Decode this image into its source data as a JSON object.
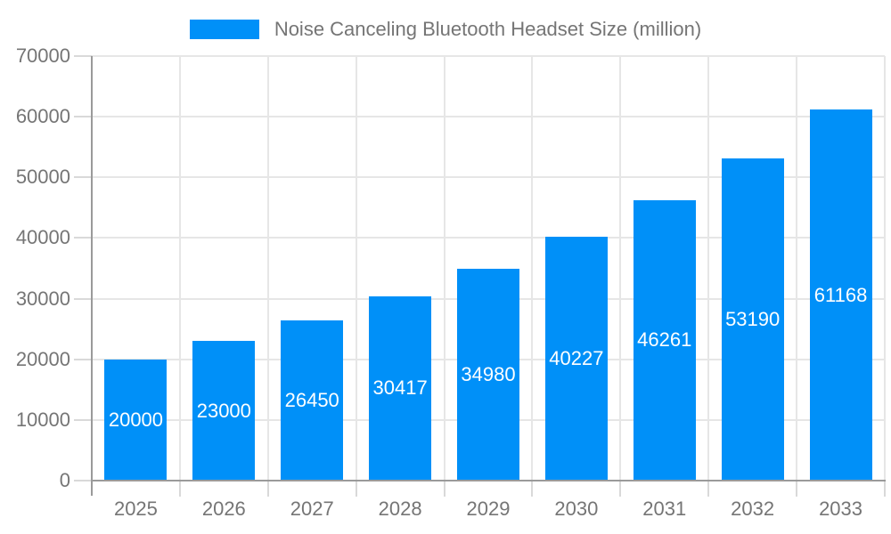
{
  "chart_data": {
    "type": "bar",
    "legend": "Noise Canceling Bluetooth Headset Size (million)",
    "categories": [
      "2025",
      "2026",
      "2027",
      "2028",
      "2029",
      "2030",
      "2031",
      "2032",
      "2033"
    ],
    "values": [
      20000,
      23000,
      26450,
      30417,
      34980,
      40227,
      46261,
      53190,
      61168
    ],
    "ylim": [
      0,
      70000
    ],
    "yticks": [
      0,
      10000,
      20000,
      30000,
      40000,
      50000,
      60000,
      70000
    ],
    "grid": true,
    "legend_position": "top-center",
    "value_labels": "inside-center-white",
    "colors": {
      "bar": "#0090f8",
      "bar_label": "#ffffff",
      "axis": "#9a9a9a",
      "gridline": "#e6e6e6",
      "tick": "#d9d9d9",
      "text": "#757575",
      "background": "#ffffff"
    }
  }
}
